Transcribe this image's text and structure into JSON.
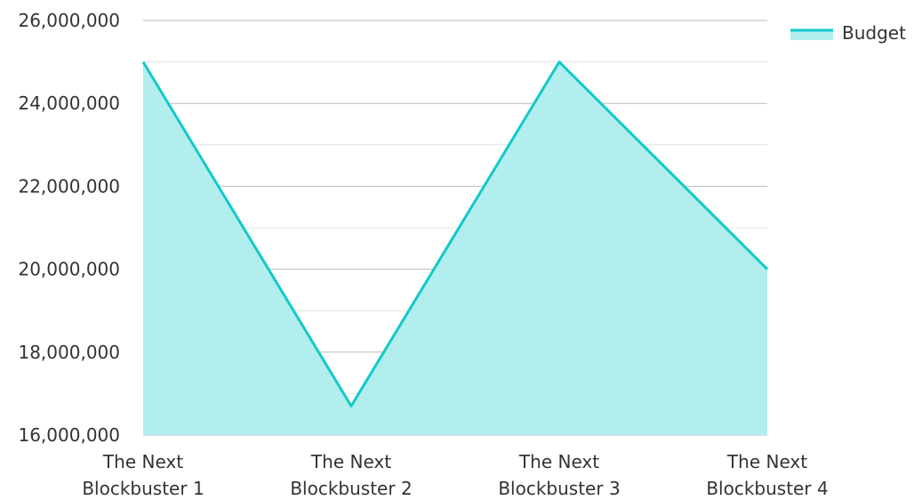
{
  "chart_data": {
    "type": "area",
    "categories": [
      [
        "The Next",
        "Blockbuster 1"
      ],
      [
        "The Next",
        "Blockbuster 2"
      ],
      [
        "The Next",
        "Blockbuster 3"
      ],
      [
        "The Next",
        "Blockbuster 4"
      ]
    ],
    "series": [
      {
        "name": "Budget",
        "values": [
          25000000,
          16700000,
          25000000,
          20000000
        ]
      }
    ],
    "y_ticks": [
      "16,000,000",
      "18,000,000",
      "20,000,000",
      "22,000,000",
      "24,000,000",
      "26,000,000"
    ],
    "ylim": [
      16000000,
      26000000
    ],
    "minor_grid_step": 1000000,
    "grid": true,
    "legend": "top-right"
  },
  "colors": {
    "line": "#13c9c9",
    "fill": "#b2eeee",
    "grid_major": "#bdbdbd",
    "grid_minor": "#e3e3e3",
    "text": "#333333"
  }
}
